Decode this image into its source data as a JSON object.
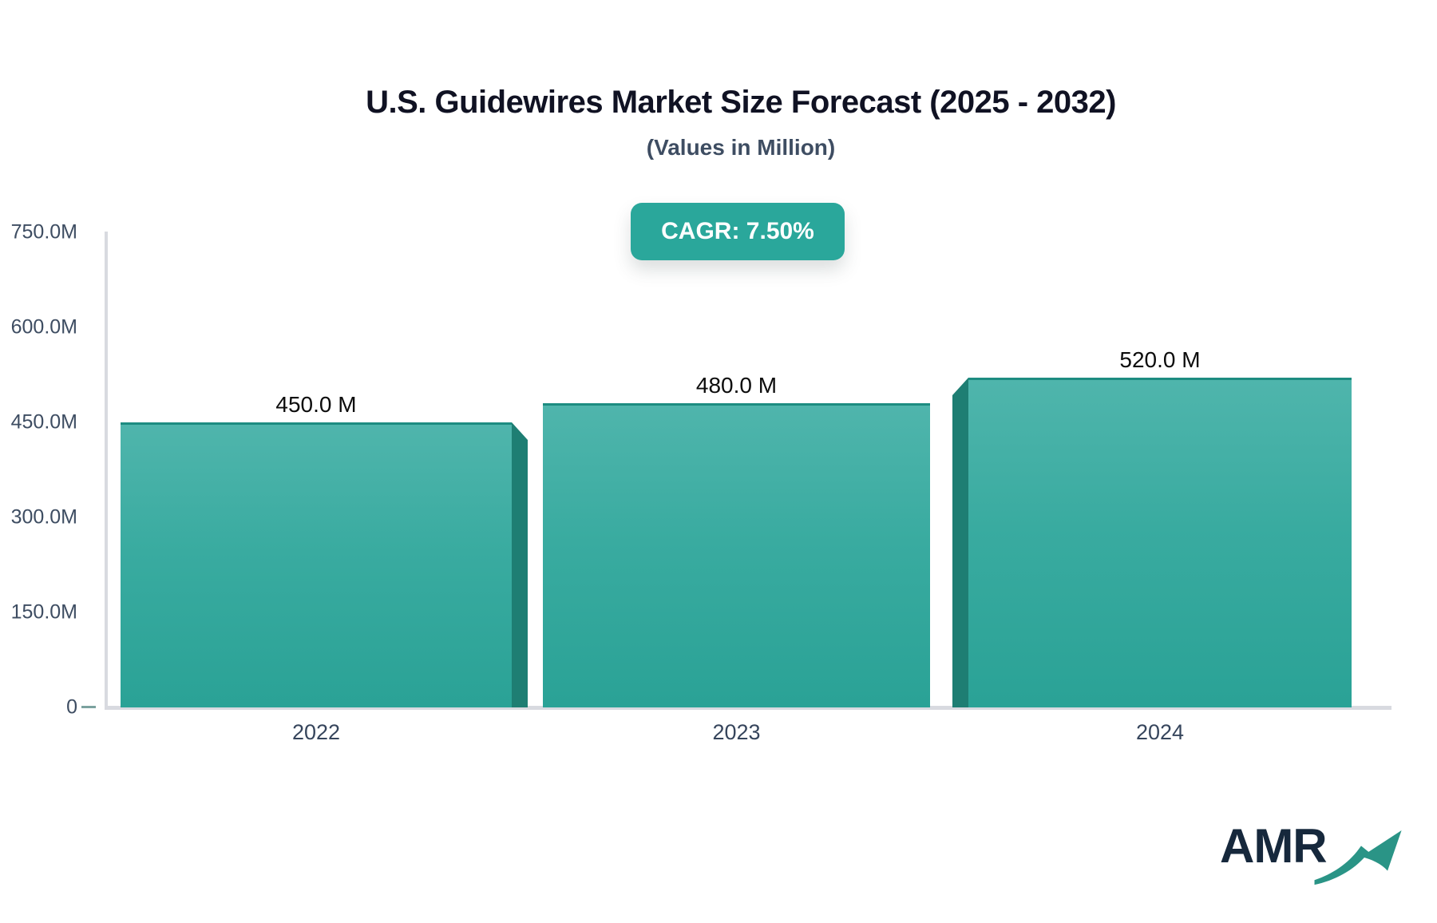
{
  "header": {
    "title": "U.S. Guidewires Market Size Forecast (2025 - 2032)",
    "subtitle": "(Values in Million)",
    "cagr_badge": "CAGR: 7.50%"
  },
  "chart_data": {
    "type": "bar",
    "title": "U.S. Guidewires Market Size Forecast (2025 - 2032)",
    "subtitle": "(Values in Million)",
    "categories": [
      "2022",
      "2023",
      "2024"
    ],
    "values": [
      450.0,
      480.0,
      520.0
    ],
    "value_labels": [
      "450.0 M",
      "480.0 M",
      "520.0 M"
    ],
    "cagr_percent": 7.5,
    "ylim": [
      0,
      750
    ],
    "ytick_interval": 150,
    "yticks": [
      "0",
      "150.0M",
      "300.0M",
      "450.0M",
      "600.0M",
      "750.0M"
    ],
    "grid": "off",
    "legend": "none"
  },
  "logo": {
    "text": "AMR"
  },
  "colors": {
    "accent_teal": "#2aa79b",
    "bar_gradient_top": "#4fb5ac",
    "bar_gradient_bottom": "#2aa296",
    "bar_side": "#1e7e73",
    "bar_top_edge": "#1d8c81",
    "axis_line": "#d8dae0",
    "axis_text": "#3e4d62",
    "category_text": "#36455c",
    "value_text": "#0c0c0c",
    "logo_navy": "#16283c",
    "logo_teal": "#2a9486"
  }
}
